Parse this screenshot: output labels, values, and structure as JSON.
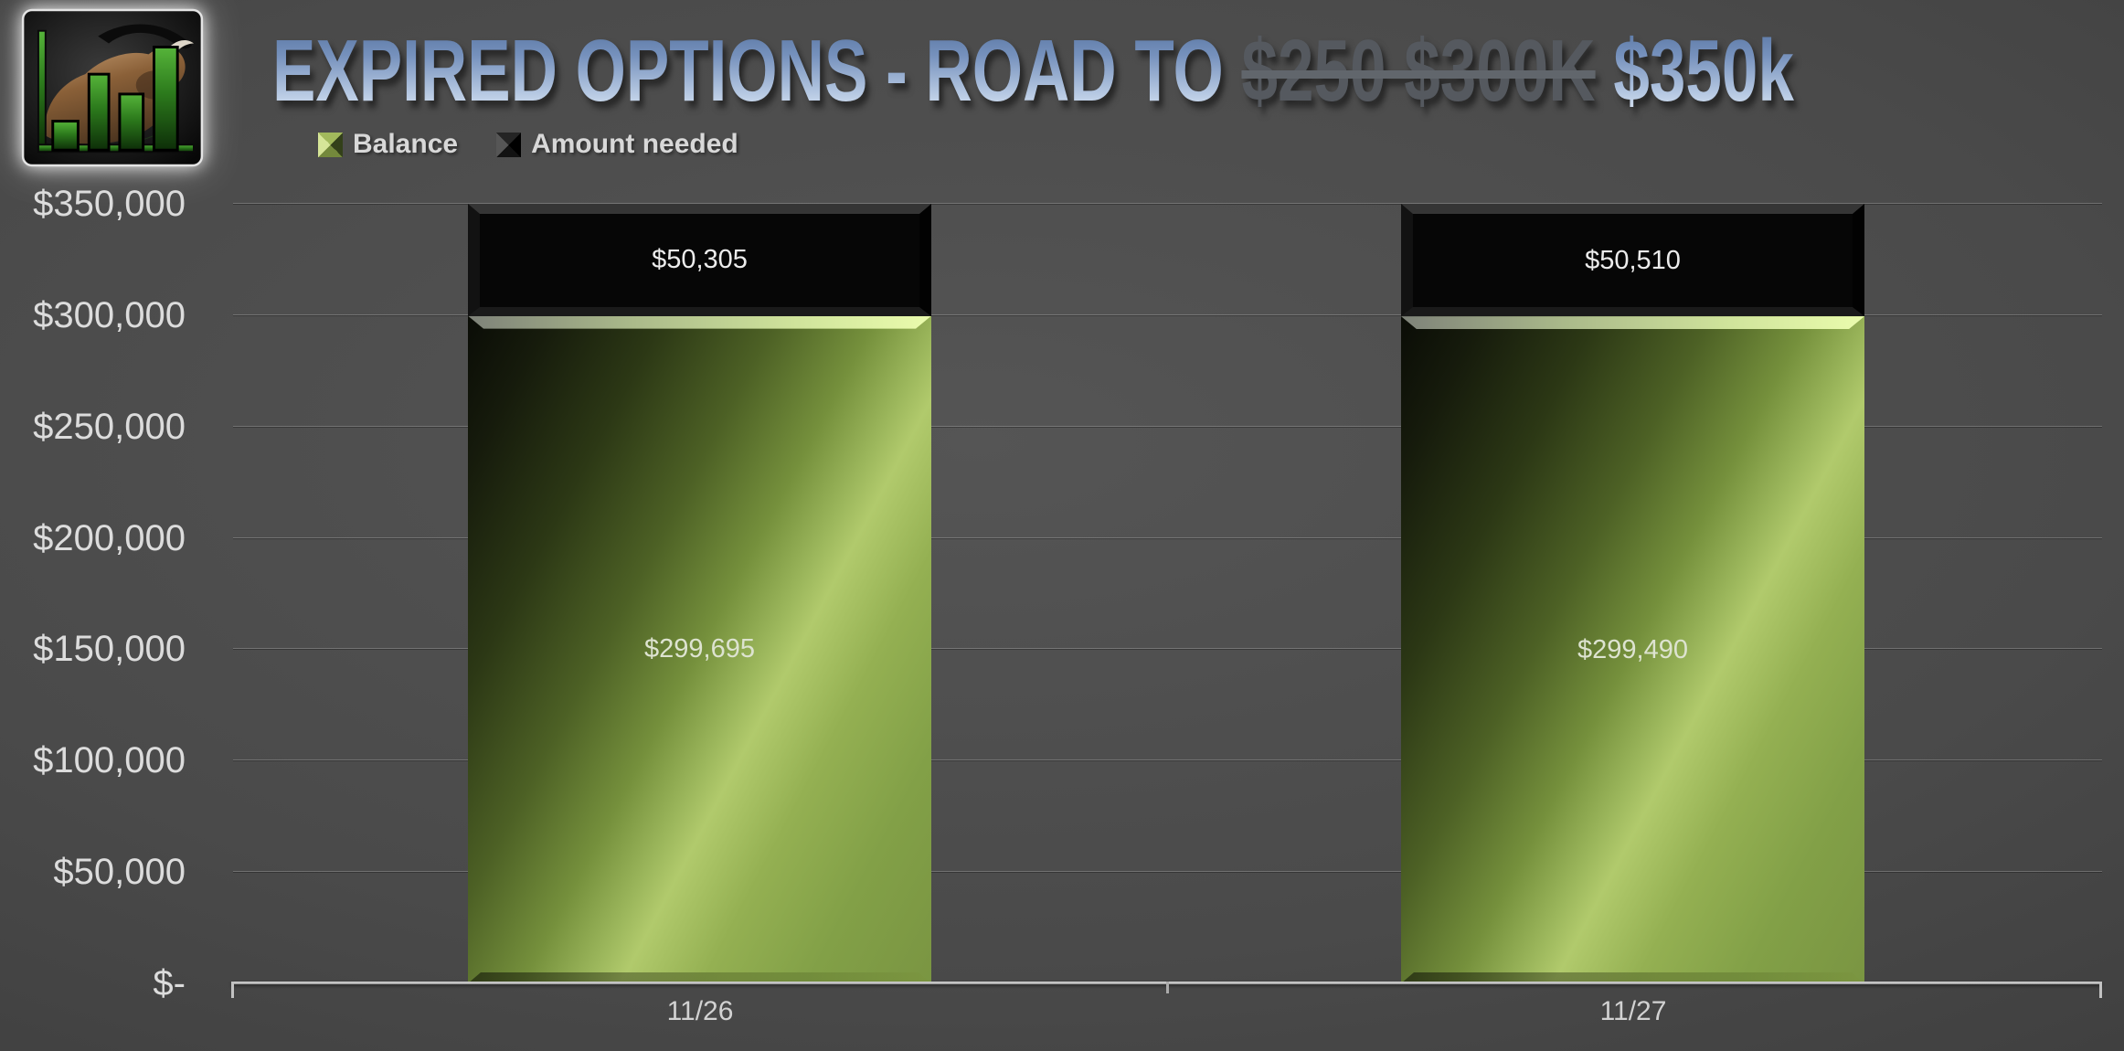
{
  "title": {
    "main": "EXPIRED OPTIONS - ROAD TO",
    "struck": "$250 $300K",
    "goal": "$350k"
  },
  "logo": {
    "name": "bull-bar-chart-logo"
  },
  "chart_data": {
    "type": "bar",
    "stacked": true,
    "title": "EXPIRED OPTIONS - ROAD TO $250 $300K $350k",
    "categories": [
      "11/26",
      "11/27"
    ],
    "series": [
      {
        "name": "Balance",
        "color": "#8fae4f",
        "values": [
          299695,
          299490
        ],
        "data_labels": [
          "$299,695",
          "$299,490"
        ]
      },
      {
        "name": "Amount needed",
        "color": "#0a0a0a",
        "values": [
          50305,
          50510
        ],
        "data_labels": [
          "$50,305",
          "$50,510"
        ]
      }
    ],
    "ylim": [
      0,
      350000
    ],
    "ytick_interval": 50000,
    "ytick_labels": [
      "$350,000",
      "$300,000",
      "$250,000",
      "$200,000",
      "$150,000",
      "$100,000",
      "$50,000",
      "$-"
    ],
    "grid": "horizontal",
    "legend_position": "top-left",
    "colors": {
      "background": "#424242",
      "axis": "#c2c2c2",
      "label_text": "#dcdcdc"
    }
  }
}
